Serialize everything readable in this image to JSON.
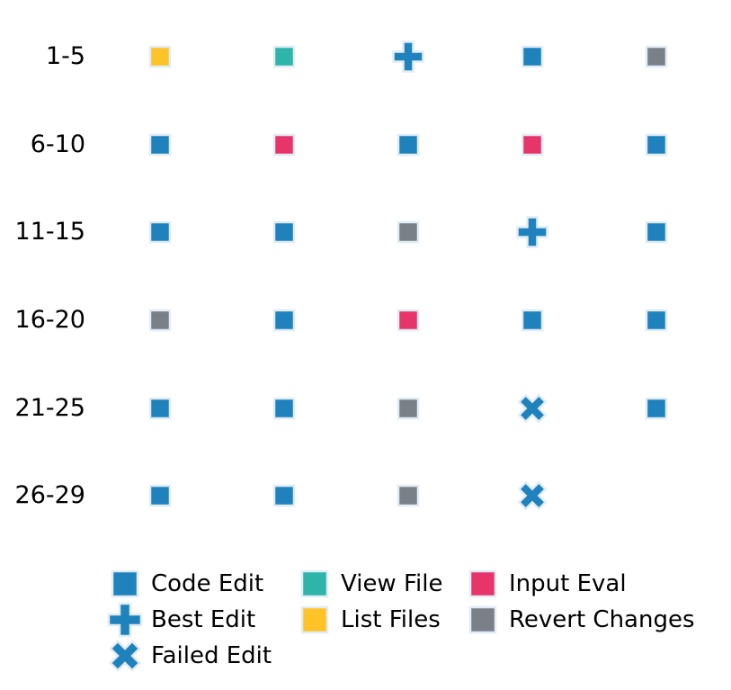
{
  "chart_data": {
    "type": "scatter",
    "title": "",
    "xlabel": "",
    "ylabel": "",
    "description": "Grid of action markers per step range; 6 row categories by 5 action slots",
    "row_categories": [
      "1-5",
      "6-10",
      "11-15",
      "16-20",
      "21-25",
      "26-29"
    ],
    "rows": [
      {
        "label": "1-5",
        "cells": [
          "List Files",
          "View File",
          "Best Edit",
          "Code Edit",
          "Revert Changes"
        ]
      },
      {
        "label": "6-10",
        "cells": [
          "Code Edit",
          "Input Eval",
          "Code Edit",
          "Input Eval",
          "Code Edit"
        ]
      },
      {
        "label": "11-15",
        "cells": [
          "Code Edit",
          "Code Edit",
          "Revert Changes",
          "Best Edit",
          "Code Edit"
        ]
      },
      {
        "label": "16-20",
        "cells": [
          "Revert Changes",
          "Code Edit",
          "Input Eval",
          "Code Edit",
          "Code Edit"
        ]
      },
      {
        "label": "21-25",
        "cells": [
          "Code Edit",
          "Code Edit",
          "Revert Changes",
          "Failed Edit",
          "Code Edit"
        ]
      },
      {
        "label": "26-29",
        "cells": [
          "Code Edit",
          "Code Edit",
          "Revert Changes",
          "Failed Edit",
          null
        ]
      }
    ],
    "legend": [
      {
        "label": "Code Edit",
        "marker": "square",
        "color": "#1f82bd"
      },
      {
        "label": "View File",
        "marker": "square",
        "color": "#2eb4a9"
      },
      {
        "label": "Input Eval",
        "marker": "square",
        "color": "#e73469"
      },
      {
        "label": "Best Edit",
        "marker": "plus",
        "color": "#1f82bd"
      },
      {
        "label": "List Files",
        "marker": "square",
        "color": "#fdc327"
      },
      {
        "label": "Revert Changes",
        "marker": "square",
        "color": "#7a8087"
      },
      {
        "label": "Failed Edit",
        "marker": "x",
        "color": "#1f82bd"
      }
    ],
    "legend_position": "bottom",
    "grid": "off",
    "colors": {
      "background": "#ffffff",
      "marker_edge": "#e0ecf6",
      "text": "#000000"
    }
  }
}
